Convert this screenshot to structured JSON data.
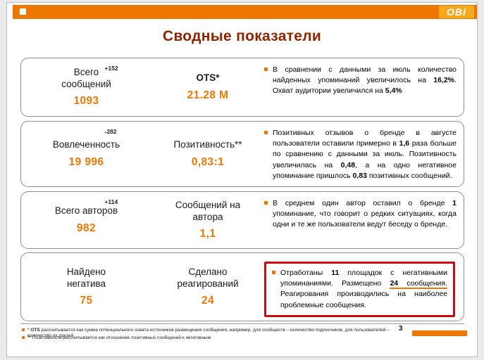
{
  "colors": {
    "accent": "#ed7703",
    "title-color": "#8c2500",
    "highlight": "#cf0a0a"
  },
  "header": {
    "logo_text": "OBI"
  },
  "slide": {
    "title": "Сводные показатели",
    "page_number": "3"
  },
  "rows": [
    {
      "metric1": {
        "label": "Всего сообщений",
        "delta": "+152",
        "value": "1093"
      },
      "metric2": {
        "label": "OTS*",
        "value": "21.28 М"
      },
      "note": [
        {
          "t": "В сравнении с данными за июль количество найденных упоминаний увеличилось на "
        },
        {
          "t": "16,2%",
          "b": true
        },
        {
          "t": ". Охват аудитории увеличился на "
        },
        {
          "t": "5,4%",
          "b": true
        }
      ]
    },
    {
      "metric1": {
        "label": "Вовлеченность",
        "delta": "-282",
        "value": "19 996"
      },
      "metric2": {
        "label": "Позитивность**",
        "value": "0,83:1"
      },
      "note": [
        {
          "t": "Позитивных отзывов о бренде в августе пользователи оставили примерно в "
        },
        {
          "t": "1,6",
          "b": true
        },
        {
          "t": " раза больше по сравнению с данными за июль. Позитивность увеличилась на "
        },
        {
          "t": "0,48",
          "b": true
        },
        {
          "t": ", а на одно негативное упоминание пришлось "
        },
        {
          "t": "0,83",
          "b": true
        },
        {
          "t": " позитивных сообщений."
        }
      ]
    },
    {
      "metric1": {
        "label": "Всего авторов",
        "delta": "+114",
        "value": "982"
      },
      "metric2": {
        "label": "Сообщений на автора",
        "value": "1,1"
      },
      "note": [
        {
          "t": "В среднем один автор оставил о бренде "
        },
        {
          "t": "1",
          "b": true
        },
        {
          "t": " упоминание, что говорит о редких ситуациях, когда одни и те же пользователи ведут беседу о бренде."
        }
      ]
    },
    {
      "metric1": {
        "label": "Найдено негатива",
        "delta": "",
        "value": "75"
      },
      "metric2": {
        "label": "Сделано реагирований",
        "value": "24"
      },
      "note": [
        {
          "t": "Отработаны "
        },
        {
          "t": "11",
          "b": true
        },
        {
          "t": " площадок с негативными упоминаниями. Размещено "
        },
        {
          "t": "24",
          "b": true,
          "u": true
        },
        {
          "t": " сообщения.",
          "u": true
        },
        {
          "t": " Реагирования производились на наиболее проблемные сообщения."
        }
      ]
    }
  ],
  "footnotes": [
    {
      "segments": [
        {
          "t": "* "
        },
        {
          "t": "OTS",
          "b": true
        },
        {
          "t": " рассчитывается как сумма потенциального охвата источников размещения сообщения, например, для сообществ – количество подписчиков, для пользователей – количество их друзей"
        }
      ]
    },
    {
      "segments": [
        {
          "t": "** Позитивность рассчитывается как отношение позитивных сообщений к негативным"
        }
      ]
    }
  ]
}
